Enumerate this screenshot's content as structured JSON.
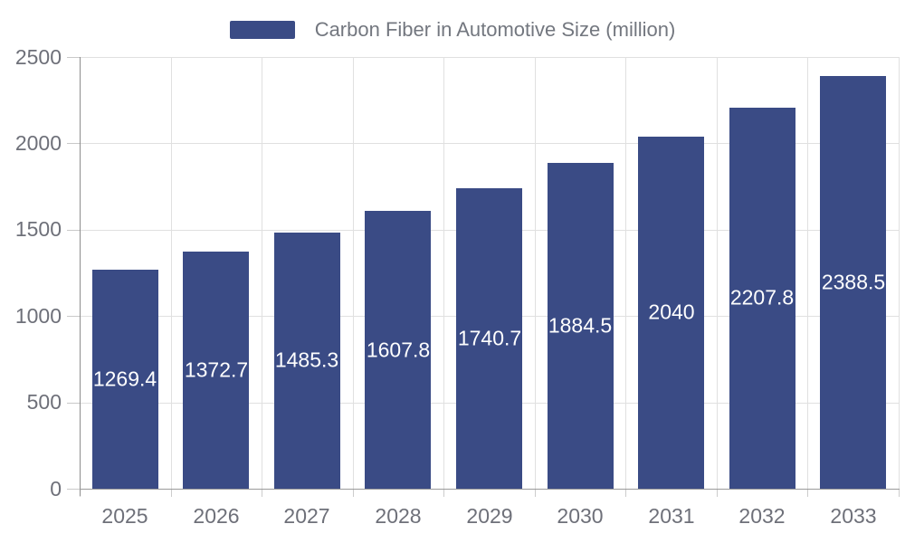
{
  "legend": {
    "label": "Carbon Fiber in Automotive Size (million)"
  },
  "colors": {
    "bar": "#3A4B85",
    "bar_value_text": "#ffffff",
    "axis_text": "#6e7079",
    "legend_text": "#73777f",
    "gridline": "#e0e0e0"
  },
  "chart_data": {
    "type": "bar",
    "title": "Carbon Fiber in Automotive Size (million)",
    "categories": [
      "2025",
      "2026",
      "2027",
      "2028",
      "2029",
      "2030",
      "2031",
      "2032",
      "2033"
    ],
    "values": [
      1269.4,
      1372.7,
      1485.3,
      1607.8,
      1740.7,
      1884.5,
      2040,
      2207.8,
      2388.5
    ],
    "value_labels": [
      "1269.4",
      "1372.7",
      "1485.3",
      "1607.8",
      "1740.7",
      "1884.5",
      "2040",
      "2207.8",
      "2388.5"
    ],
    "series_name": "Carbon Fiber in Automotive Size (million)",
    "xlabel": "",
    "ylabel": "",
    "ylim": [
      0,
      2500
    ],
    "yticks": [
      0,
      500,
      1000,
      1500,
      2000,
      2500
    ],
    "grid": true,
    "legend_position": "top",
    "bar_color": "#3A4B85",
    "value_label_position": "inside-center"
  }
}
